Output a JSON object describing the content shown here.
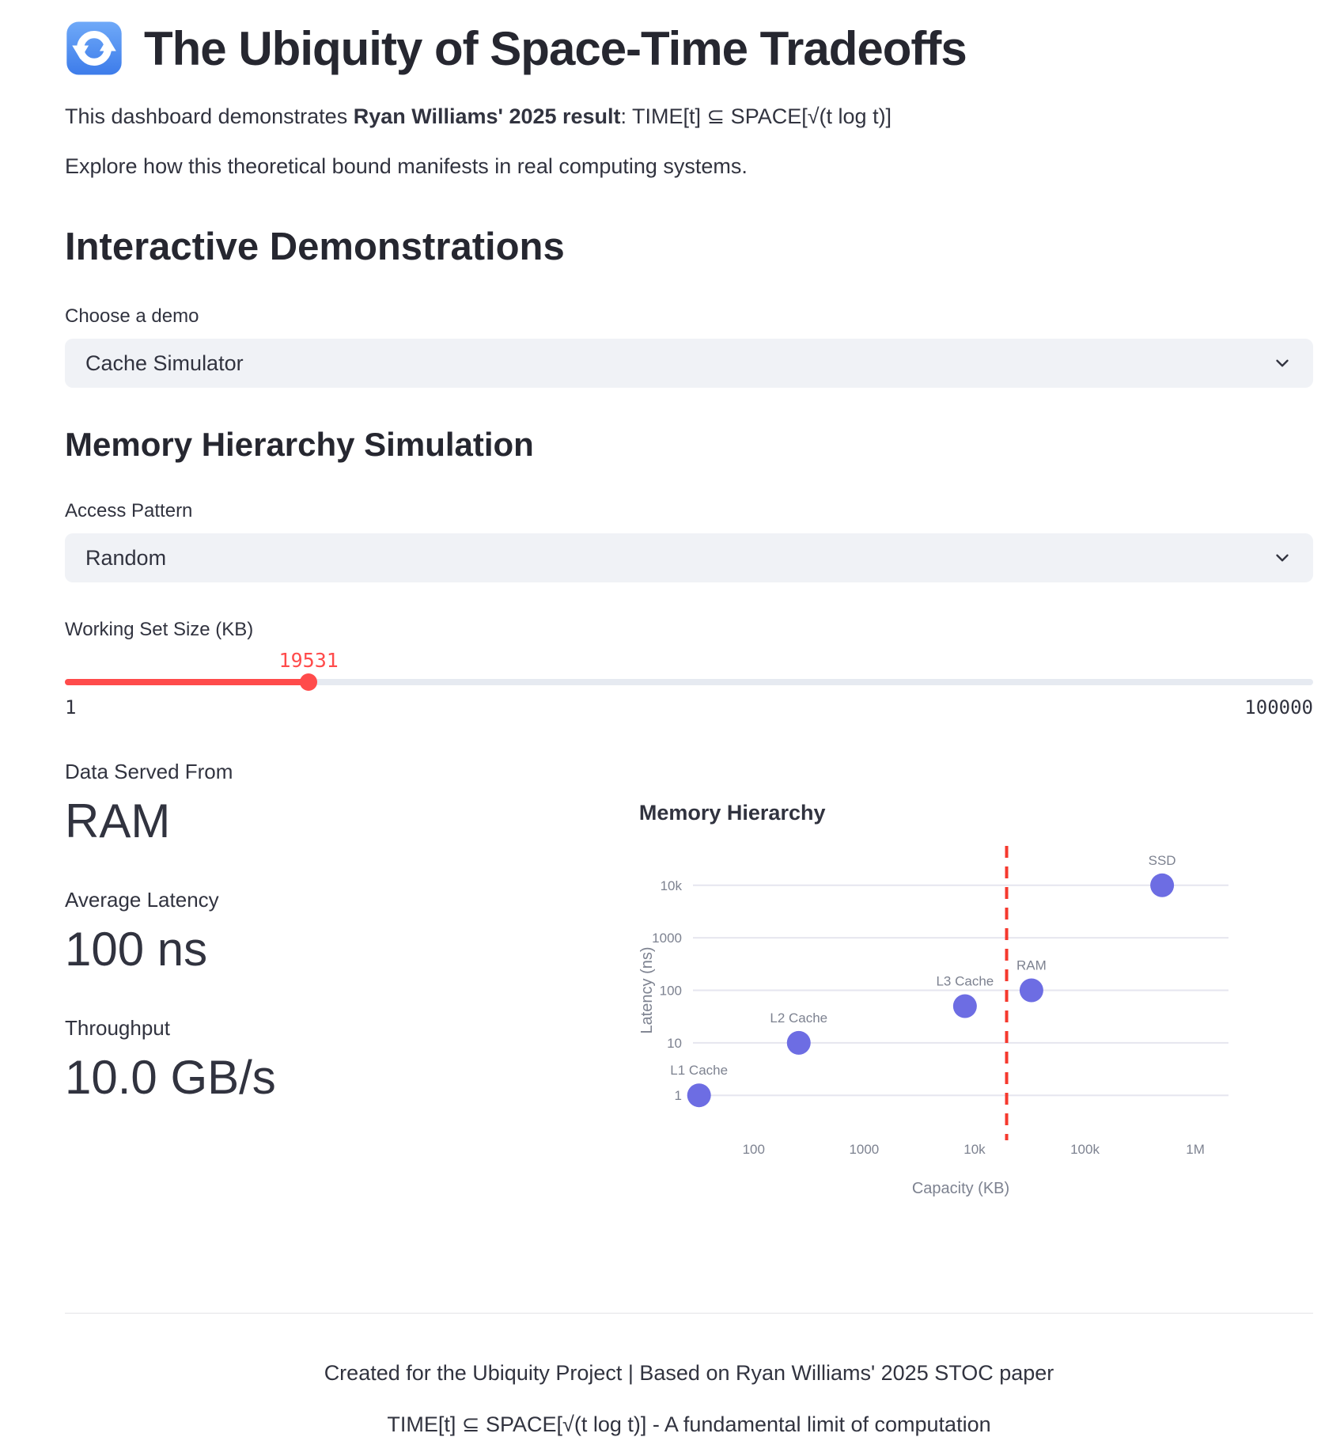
{
  "header": {
    "icon": "refresh-icon",
    "title": "The Ubiquity of Space-Time Tradeoffs"
  },
  "intro": {
    "line1_prefix": "This dashboard demonstrates ",
    "line1_bold": "Ryan Williams' 2025 result",
    "line1_suffix": ": TIME[t] ⊆ SPACE[√(t log t)]",
    "line2": "Explore how this theoretical bound manifests in real computing systems."
  },
  "demos": {
    "heading": "Interactive Demonstrations",
    "select_label": "Choose a demo",
    "selected_option": "Cache Simulator"
  },
  "simulation": {
    "heading": "Memory Hierarchy Simulation",
    "access_pattern": {
      "label": "Access Pattern",
      "selected_option": "Random"
    },
    "working_set": {
      "label": "Working Set Size (KB)",
      "value": 19531,
      "min": 1,
      "max": 100000
    }
  },
  "metrics": [
    {
      "label": "Data Served From",
      "value": "RAM"
    },
    {
      "label": "Average Latency",
      "value": "100 ns"
    },
    {
      "label": "Throughput",
      "value": "10.0 GB/s"
    }
  ],
  "chart_data": {
    "type": "scatter",
    "title": "Memory Hierarchy",
    "xlabel": "Capacity (KB)",
    "ylabel": "Latency (ns)",
    "x_scale": "log",
    "y_scale": "log",
    "grid": "horizontal-only",
    "x_log_domain": [
      1.45,
      6.3
    ],
    "y_log_domain": [
      -0.6,
      4.6
    ],
    "x_ticks": [
      {
        "label": "100",
        "value": 100
      },
      {
        "label": "1000",
        "value": 1000
      },
      {
        "label": "10k",
        "value": 10000
      },
      {
        "label": "100k",
        "value": 100000
      },
      {
        "label": "1M",
        "value": 1000000
      }
    ],
    "y_ticks": [
      {
        "label": "1",
        "value": 1
      },
      {
        "label": "10",
        "value": 10
      },
      {
        "label": "100",
        "value": 100
      },
      {
        "label": "1000",
        "value": 1000
      },
      {
        "label": "10k",
        "value": 10000
      }
    ],
    "points": [
      {
        "label": "L1 Cache",
        "capacity_kb": 32,
        "latency_ns": 1
      },
      {
        "label": "L2 Cache",
        "capacity_kb": 256,
        "latency_ns": 10
      },
      {
        "label": "L3 Cache",
        "capacity_kb": 8192,
        "latency_ns": 50
      },
      {
        "label": "RAM",
        "capacity_kb": 32768,
        "latency_ns": 100
      },
      {
        "label": "SSD",
        "capacity_kb": 500000,
        "latency_ns": 10000
      }
    ],
    "marker_line": {
      "x": 19531,
      "color": "#f5392e",
      "style": "dashed",
      "meaning": "working set size"
    },
    "point_color": "#6d6de3",
    "label_color": "#7d8290",
    "gridline_color": "#e6e6ef"
  },
  "colors": {
    "accent_red": "#ff4b4b",
    "select_bg": "#f0f2f6",
    "icon_blue": "#4a8cf7",
    "heading": "#262730",
    "text": "#31333f"
  },
  "footer": {
    "line1": "Created for the Ubiquity Project | Based on Ryan Williams' 2025 STOC paper",
    "line2": "TIME[t] ⊆ SPACE[√(t log t)] - A fundamental limit of computation"
  }
}
